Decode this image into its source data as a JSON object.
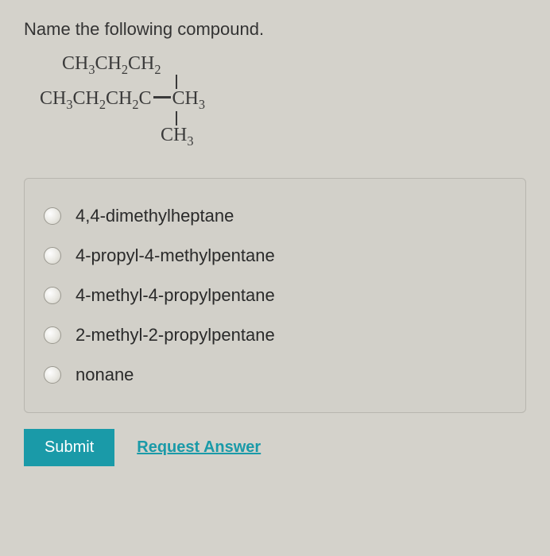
{
  "question": {
    "prompt": "Name the following compound.",
    "structure": {
      "line1": "CH<sub>3</sub>CH<sub>2</sub>CH<sub>2</sub>",
      "line2_left": "CH<sub>3</sub>CH<sub>2</sub>CH<sub>2</sub>C",
      "line2_right": "CH<sub>3</sub>",
      "line3": "CH<sub>3</sub>"
    }
  },
  "options": [
    {
      "label": "4,4-dimethylheptane"
    },
    {
      "label": "4-propyl-4-methylpentane"
    },
    {
      "label": "4-methyl-4-propylpentane"
    },
    {
      "label": "2-methyl-2-propylpentane"
    },
    {
      "label": "nonane"
    }
  ],
  "actions": {
    "submit": "Submit",
    "request": "Request Answer"
  },
  "colors": {
    "background": "#d4d2cb",
    "submit_bg": "#1a9aa8",
    "link": "#1a9aa8",
    "border": "#b8b6af"
  }
}
